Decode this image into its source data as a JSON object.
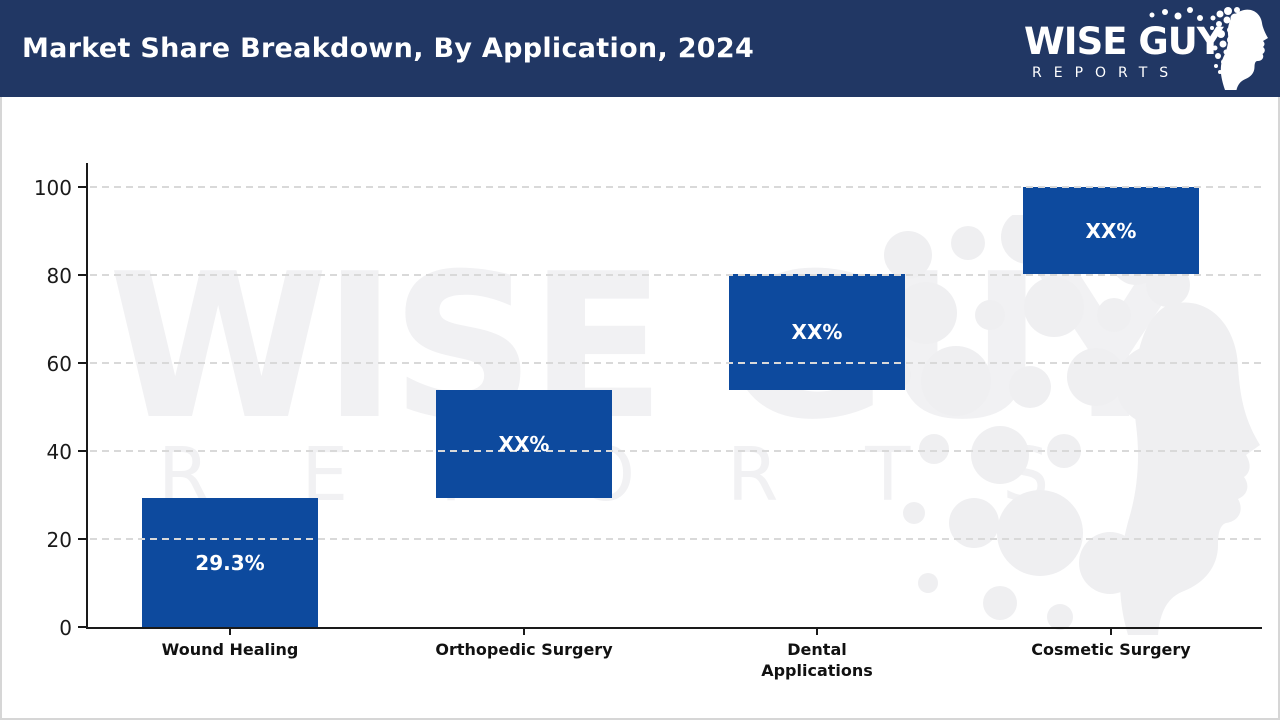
{
  "header": {
    "title": "Market Share Breakdown, By Application, 2024"
  },
  "logo": {
    "line1": "WISE GUY",
    "line2": "REPORTS"
  },
  "watermark": {
    "line1": "WISE GUY",
    "line2": "REPORTS"
  },
  "colors": {
    "header_bg": "#213764",
    "bar": "#0d4a9e",
    "grid": "#d9d9d9",
    "axis": "#1a1a1a",
    "bar_label": "#ffffff",
    "watermark": "#f1f1f3",
    "page_border": "#d6d6d6"
  },
  "chart_data": {
    "type": "bar",
    "variant": "waterfall",
    "title": "Market Share Breakdown, By Application, 2024",
    "categories": [
      "Wound Healing",
      "Orthopedic Surgery",
      "Dental Applications",
      "Cosmetic Surgery"
    ],
    "category_display": [
      [
        "Wound Healing"
      ],
      [
        "Orthopedic Surgery"
      ],
      [
        "Dental",
        "Applications"
      ],
      [
        "Cosmetic Surgery"
      ]
    ],
    "series": [
      {
        "name": "Market Share (%)",
        "segments": [
          {
            "category": "Wound Healing",
            "start": 0,
            "end": 29.3,
            "label": "29.3%"
          },
          {
            "category": "Orthopedic Surgery",
            "start": 29.3,
            "end": 53.9,
            "label": "XX%"
          },
          {
            "category": "Dental Applications",
            "start": 53.9,
            "end": 80.2,
            "label": "XX%"
          },
          {
            "category": "Cosmetic Surgery",
            "start": 80.2,
            "end": 100,
            "label": "XX%"
          }
        ]
      }
    ],
    "xlabel": "",
    "ylabel": "",
    "yticks": [
      0,
      20,
      40,
      60,
      80,
      100
    ],
    "ylim": [
      0,
      105.5
    ],
    "grid": {
      "horizontal": true,
      "style": "dashed",
      "color": "#d9d9d9",
      "drawn_over_bars": true
    },
    "legend": "none",
    "bar_color": "#0d4a9e",
    "bar_label_color": "#ffffff"
  }
}
